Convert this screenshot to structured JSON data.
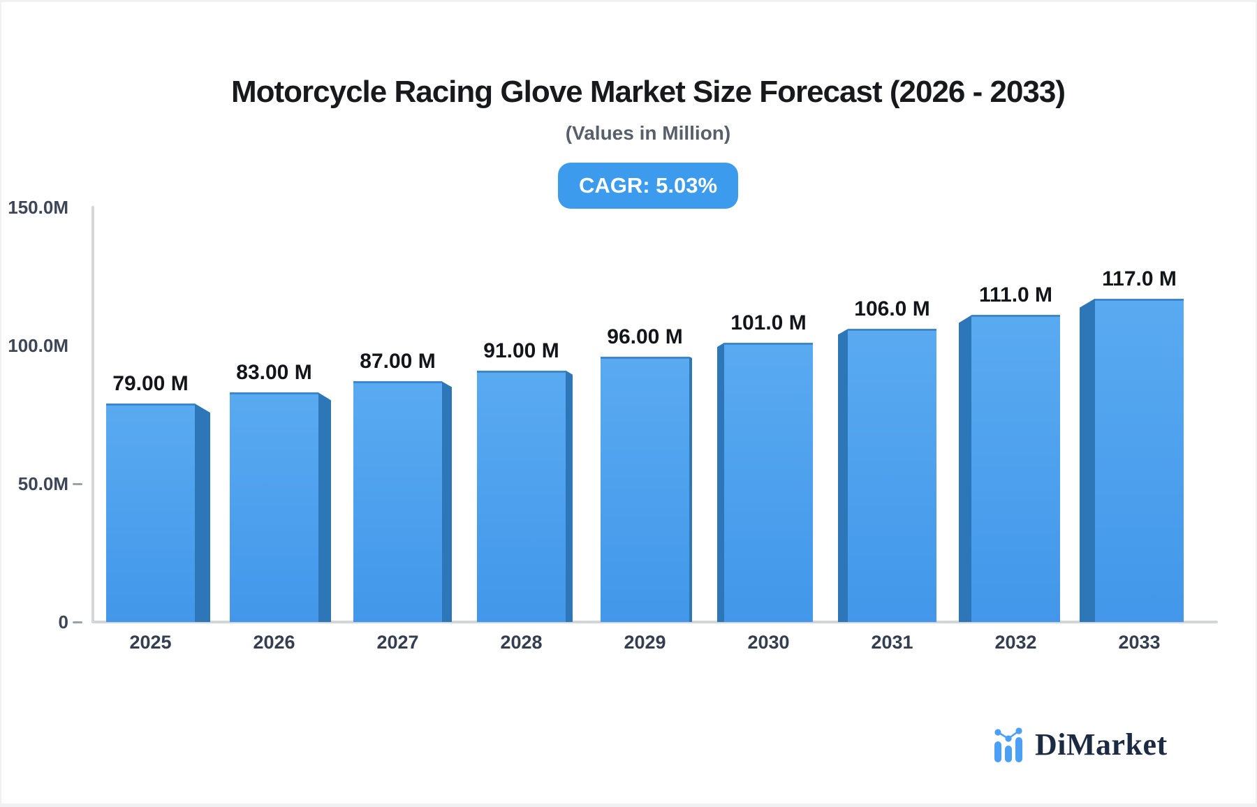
{
  "header": {
    "title": "Motorcycle Racing Glove Market Size Forecast (2026 - 2033)",
    "subtitle": "(Values in Million)",
    "cagr_label": "CAGR: 5.03%",
    "cagr_badge_color": "#3d9bee"
  },
  "chart_data": {
    "type": "bar",
    "title": "Motorcycle Racing Glove Market Size Forecast (2026 - 2033)",
    "subtitle": "(Values in Million)",
    "unit": "Million",
    "categories": [
      "2025",
      "2026",
      "2027",
      "2028",
      "2029",
      "2030",
      "2031",
      "2032",
      "2033"
    ],
    "values": [
      79,
      83,
      87,
      91,
      96,
      101,
      106,
      111,
      117
    ],
    "value_labels": [
      "79.00 M",
      "83.00 M",
      "87.00 M",
      "91.00 M",
      "96.00 M",
      "101.0 M",
      "106.0 M",
      "111.0 M",
      "117.0 M"
    ],
    "ylim": [
      0,
      150
    ],
    "yticks": [
      {
        "value": 0,
        "label": "0",
        "dash": true
      },
      {
        "value": 50,
        "label": "50.0M",
        "dash": true
      },
      {
        "value": 100,
        "label": "100.0M",
        "dash": false
      },
      {
        "value": 150,
        "label": "150.0M",
        "dash": false
      }
    ],
    "grid": false,
    "legend": false,
    "style_3d": true,
    "colors": {
      "bar_front_top": "#59aaf0",
      "bar_front_bottom": "#4297ea",
      "bar_top_edge": "#3c87ce",
      "bar_side": "#2d77b9",
      "axis": "#d2d6db"
    }
  },
  "logo": {
    "text": "DiMarket",
    "icon": "bar-line-chart-icon",
    "icon_color": "#4aa0f5",
    "text_color": "#1c2a42"
  }
}
